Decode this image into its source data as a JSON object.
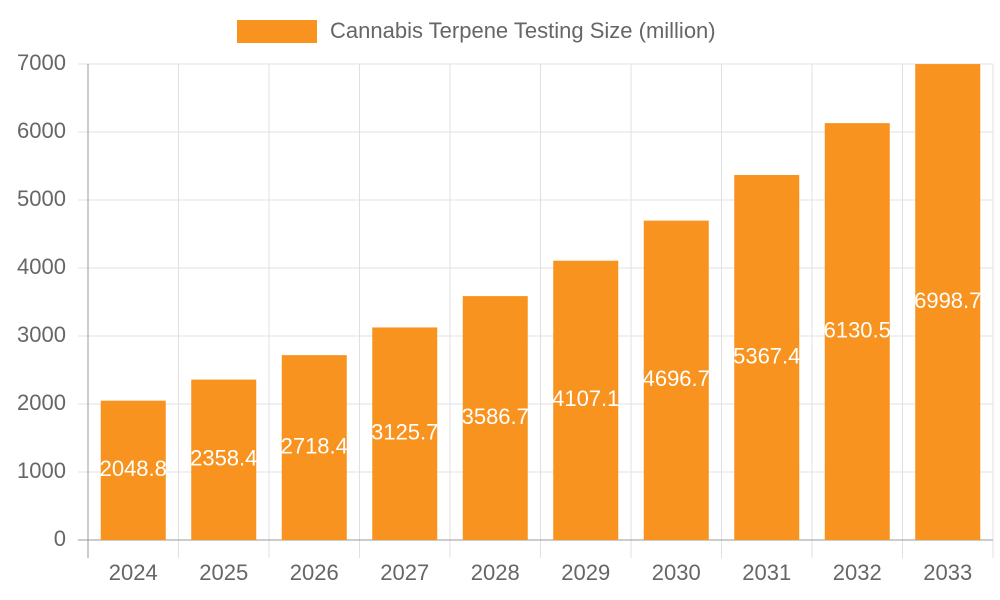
{
  "chart_data": {
    "type": "bar",
    "categories": [
      "2024",
      "2025",
      "2026",
      "2027",
      "2028",
      "2029",
      "2030",
      "2031",
      "2032",
      "2033"
    ],
    "series": [
      {
        "name": "Cannabis Terpene Testing Size (million)",
        "color": "#f7931e",
        "values": [
          2048.8,
          2358.4,
          2718.4,
          3125.7,
          3586.7,
          4107.1,
          4696.7,
          5367.4,
          6130.5,
          6998.7
        ]
      }
    ],
    "ylim": [
      0,
      7000
    ],
    "yticks": [
      0,
      1000,
      2000,
      3000,
      4000,
      5000,
      6000,
      7000
    ],
    "grid": true,
    "legend": "top"
  }
}
